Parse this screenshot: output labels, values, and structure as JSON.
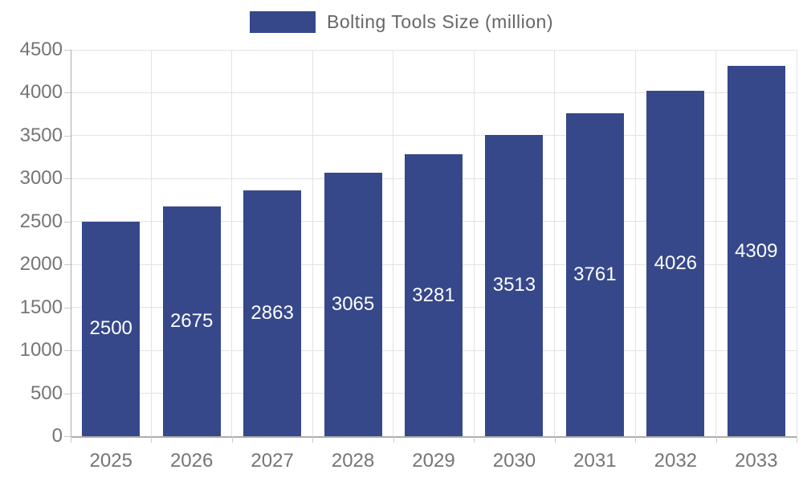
{
  "chart_data": {
    "type": "bar",
    "title": "",
    "legend": "Bolting Tools Size (million)",
    "categories": [
      "2025",
      "2026",
      "2027",
      "2028",
      "2029",
      "2030",
      "2031",
      "2032",
      "2033"
    ],
    "values": [
      2500,
      2675,
      2863,
      3065,
      3281,
      3513,
      3761,
      4026,
      4309
    ],
    "xlabel": "",
    "ylabel": "",
    "ylim": [
      0,
      4500
    ],
    "ytick_step": 500,
    "ytick_labels": [
      "0",
      "500",
      "1000",
      "1500",
      "2000",
      "2500",
      "3000",
      "3500",
      "4000",
      "4500"
    ],
    "grid": true,
    "legend_position": "top",
    "value_labels": "inside-center",
    "colors": {
      "bar": "#36488A",
      "value_label": "#FFFFFF",
      "axis_label": "#757575",
      "legend_text": "#666666",
      "gridline": "#E3E3E3",
      "axis_line": "#ADADAD",
      "background": "#FFFFFF"
    }
  }
}
